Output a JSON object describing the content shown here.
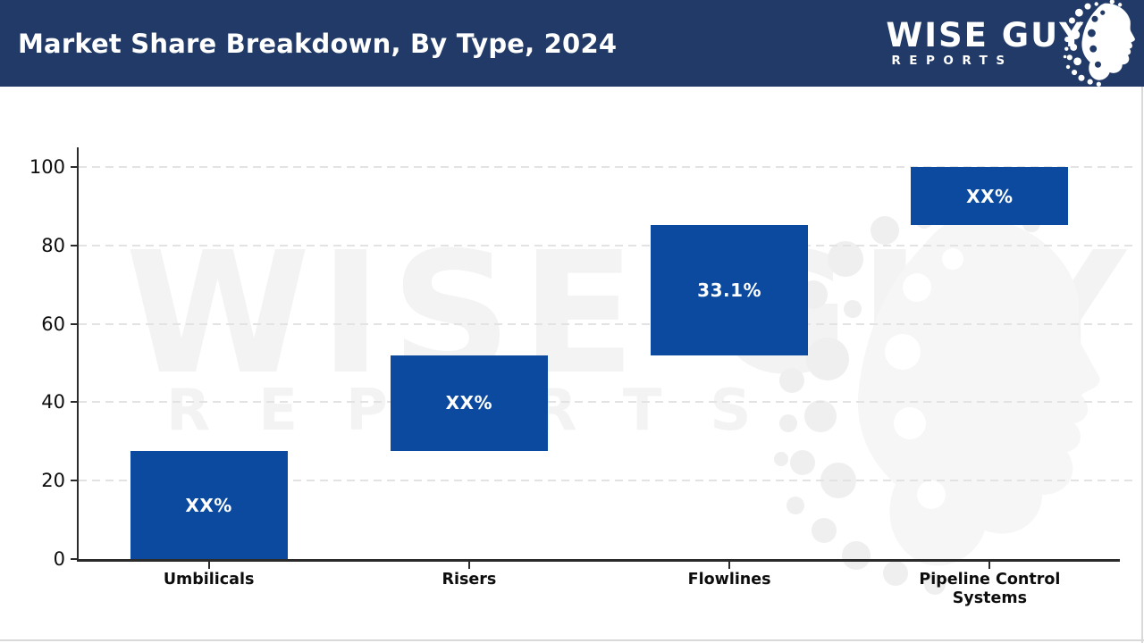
{
  "header": {
    "title": "Market Share Breakdown, By Type, 2024",
    "logo": {
      "line1": "WISE GUY",
      "line2": "REPORTS"
    }
  },
  "watermark": {
    "line1": "WISE GUY",
    "line2": "REPORTS"
  },
  "chart_data": {
    "type": "bar",
    "style": "waterfall-floating-bars",
    "title": "Market Share Breakdown, By Type, 2024",
    "categories": [
      "Umbilicals",
      "Risers",
      "Flowlines",
      "Pipeline Control Systems"
    ],
    "series": [
      {
        "name": "Market share (%)",
        "segments": [
          {
            "category": "Umbilicals",
            "start": 0,
            "end": 27.5,
            "label": "XX%"
          },
          {
            "category": "Risers",
            "start": 27.5,
            "end": 52.0,
            "label": "XX%"
          },
          {
            "category": "Flowlines",
            "start": 52.0,
            "end": 85.1,
            "label": "33.1%"
          },
          {
            "category": "Pipeline Control Systems",
            "start": 85.1,
            "end": 100,
            "label": "XX%"
          }
        ]
      }
    ],
    "xlabel": "",
    "ylabel": "",
    "ylim": [
      0,
      100
    ],
    "yticks": [
      0,
      20,
      40,
      60,
      80,
      100
    ],
    "grid": "horizontal-dashed",
    "legend": "none"
  },
  "colors": {
    "header_bg": "#213A67",
    "bar": "#0B4A9E",
    "bar_label": "#FFFFFF",
    "axis": "#2B2B2B",
    "grid": "#E3E3E3",
    "text": "#0D0D0D",
    "watermark": "#F3F3F3"
  }
}
